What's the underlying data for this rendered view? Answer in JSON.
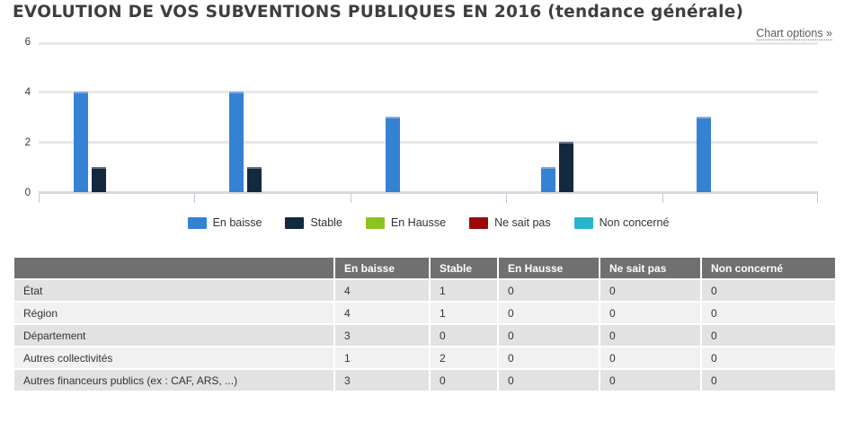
{
  "header": {
    "title": "EVOLUTION DE VOS SUBVENTIONS PUBLIQUES EN 2016 (tendance générale)",
    "chart_options_label": "Chart options »"
  },
  "colors": {
    "en_baisse": "#3581d4",
    "stable": "#122940",
    "en_hausse": "#8cc321",
    "ne_sait_pas": "#9c0a0a",
    "non_concerne": "#29b4cd",
    "gridline": "#e7e7e7",
    "axis_baseline": "#d8d8d8",
    "axis_tick": "#b9cbe2",
    "table_header_bg": "#707070",
    "row_odd_bg": "#e2e2e2",
    "row_even_bg": "#f1f1f1"
  },
  "chart_data": {
    "type": "bar",
    "title": "EVOLUTION DE VOS SUBVENTIONS PUBLIQUES EN 2016 (tendance générale)",
    "categories": [
      "État",
      "Région",
      "Département",
      "Autres collectivités",
      "Autres financeurs publics (ex : CAF, ARS, ...)"
    ],
    "series": [
      {
        "name": "En baisse",
        "color": "#3581d4",
        "values": [
          4,
          4,
          3,
          1,
          3
        ]
      },
      {
        "name": "Stable",
        "color": "#122940",
        "values": [
          1,
          1,
          0,
          2,
          0
        ]
      },
      {
        "name": "En Hausse",
        "color": "#8cc321",
        "values": [
          0,
          0,
          0,
          0,
          0
        ]
      },
      {
        "name": "Ne sait pas",
        "color": "#9c0a0a",
        "values": [
          0,
          0,
          0,
          0,
          0
        ]
      },
      {
        "name": "Non concerné",
        "color": "#29b4cd",
        "values": [
          0,
          0,
          0,
          0,
          0
        ]
      }
    ],
    "xlabel": "",
    "ylabel": "",
    "ylim": [
      0,
      6
    ],
    "yticks": [
      0,
      2,
      4,
      6
    ],
    "grid": true,
    "legend_position": "bottom"
  },
  "table": {
    "columns": [
      "",
      "En baisse",
      "Stable",
      "En Hausse",
      "Ne sait pas",
      "Non concerné"
    ],
    "rows": [
      {
        "label": "État",
        "values": [
          4,
          1,
          0,
          0,
          0
        ]
      },
      {
        "label": "Région",
        "values": [
          4,
          1,
          0,
          0,
          0
        ]
      },
      {
        "label": "Département",
        "values": [
          3,
          0,
          0,
          0,
          0
        ]
      },
      {
        "label": "Autres collectivités",
        "values": [
          1,
          2,
          0,
          0,
          0
        ]
      },
      {
        "label": "Autres financeurs publics (ex : CAF, ARS, ...)",
        "values": [
          3,
          0,
          0,
          0,
          0
        ]
      }
    ]
  }
}
